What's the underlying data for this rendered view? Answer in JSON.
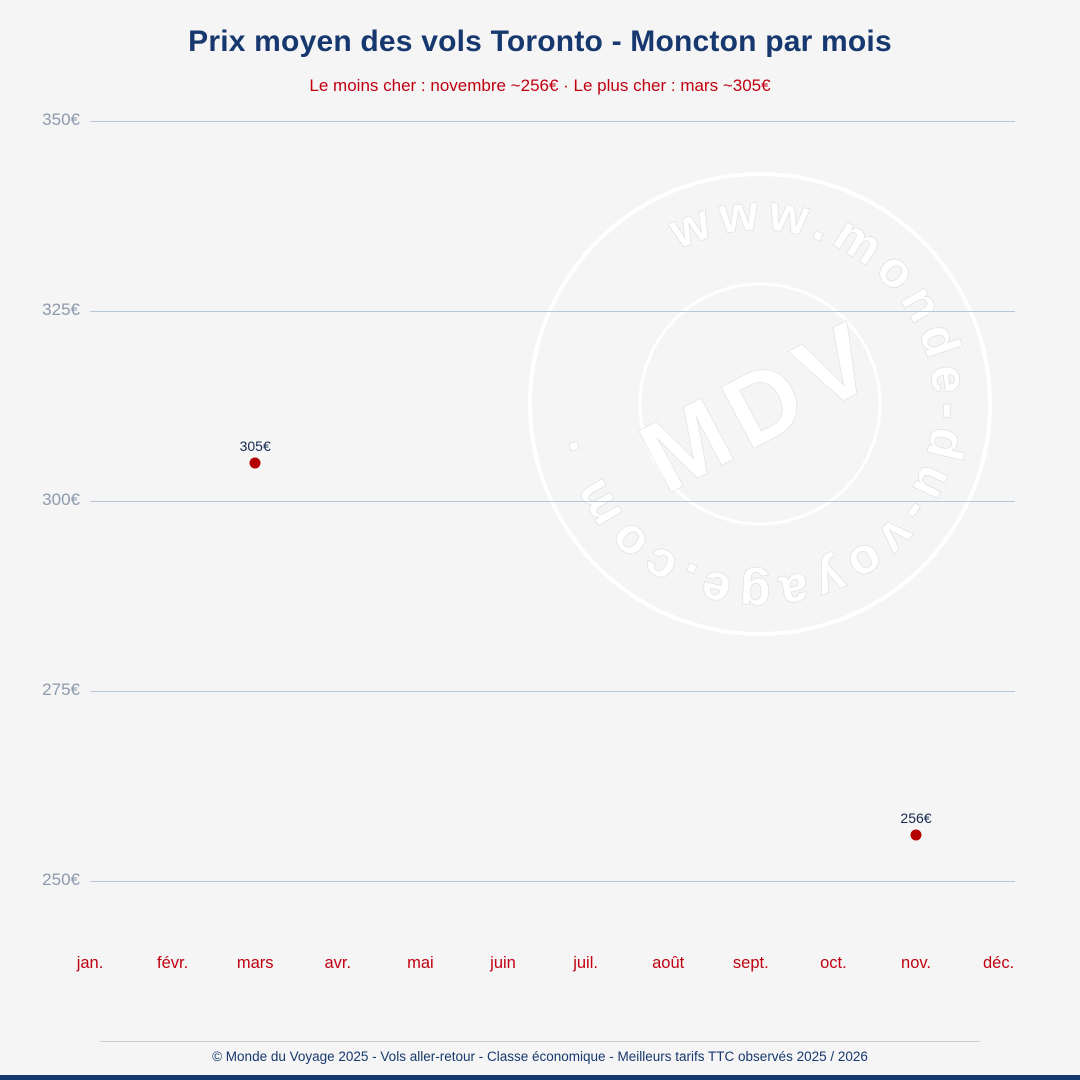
{
  "header": {
    "title": "Prix moyen des vols Toronto - Moncton par mois",
    "subtitle": "Le moins cher : novembre ~256€ · Le plus cher : mars ~305€"
  },
  "chart_data": {
    "type": "scatter",
    "title": "Prix moyen des vols Toronto - Moncton par mois",
    "subtitle": "Le moins cher : novembre ~256€ · Le plus cher : mars ~305€",
    "categories": [
      "jan.",
      "févr.",
      "mars",
      "avr.",
      "mai",
      "juin",
      "juil.",
      "août",
      "sept.",
      "oct.",
      "nov.",
      "déc."
    ],
    "points": [
      {
        "month": "mars",
        "index": 2,
        "value": 305,
        "label": "305€"
      },
      {
        "month": "nov.",
        "index": 10,
        "value": 256,
        "label": "256€"
      }
    ],
    "y_ticks": [
      350,
      325,
      300,
      275,
      250
    ],
    "y_tick_labels": [
      "350€",
      "325€",
      "300€",
      "275€",
      "250€"
    ],
    "ylim": [
      250,
      350
    ],
    "xlabel": "",
    "ylabel": "",
    "grid": true,
    "legend": false,
    "cheapest": {
      "month": "novembre",
      "value": 256
    },
    "most_expensive": {
      "month": "mars",
      "value": 305
    }
  },
  "watermark": {
    "url_text": "www.monde-du-voyage.com ·",
    "initials": "MDV"
  },
  "footer": {
    "text": "© Monde du Voyage 2025 - Vols aller-retour - Classe économique - Meilleurs tarifs TTC observés 2025 / 2026"
  },
  "colors": {
    "title": "#17386e",
    "accent_red": "#c00010",
    "dot": "#b30000",
    "grid": "#b9c6d6",
    "axis_label": "#8d99ad",
    "background": "#f5f5f5",
    "point_label": "#15294e"
  }
}
